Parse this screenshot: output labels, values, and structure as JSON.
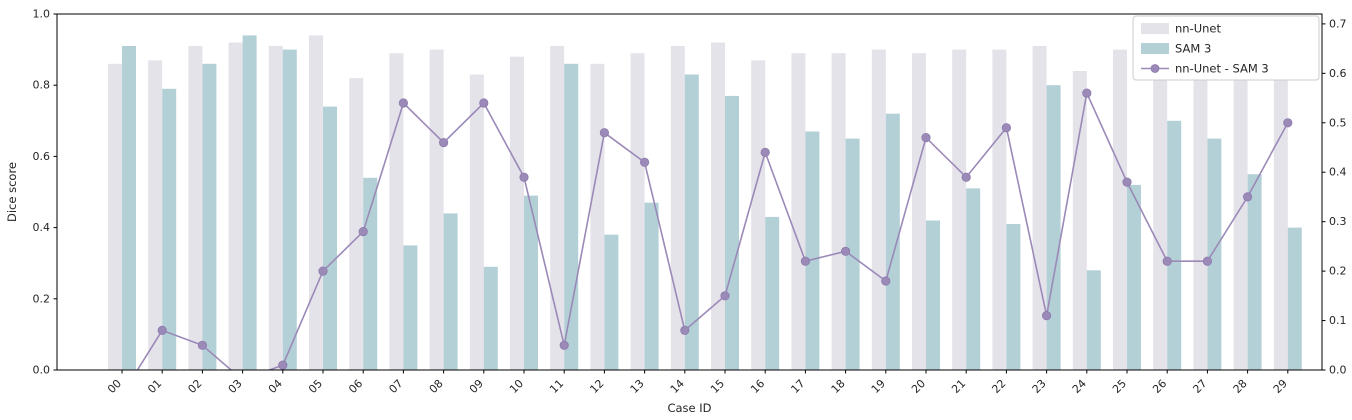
{
  "chart_data": {
    "type": "bar",
    "title": "",
    "xlabel": "Case ID",
    "ylabel_left": "Dice score",
    "ylim_left": [
      0.0,
      1.0
    ],
    "yticks_left": [
      "0.0",
      "0.2",
      "0.4",
      "0.6",
      "0.8",
      "1.0"
    ],
    "ylim_right": [
      0.0,
      0.72
    ],
    "yticks_right": [
      "0.0",
      "0.1",
      "0.2",
      "0.3",
      "0.4",
      "0.5",
      "0.6",
      "0.7"
    ],
    "legend_position": "upper right",
    "grid": false,
    "categories": [
      "00",
      "01",
      "02",
      "03",
      "04",
      "05",
      "06",
      "07",
      "08",
      "09",
      "10",
      "11",
      "12",
      "13",
      "14",
      "15",
      "16",
      "17",
      "18",
      "19",
      "20",
      "21",
      "22",
      "23",
      "24",
      "25",
      "26",
      "27",
      "28",
      "29"
    ],
    "series": [
      {
        "name": "nn-Unet",
        "kind": "bar",
        "axis": "left",
        "color": "#e5e3ea",
        "values": [
          0.86,
          0.87,
          0.91,
          0.92,
          0.91,
          0.94,
          0.82,
          0.89,
          0.9,
          0.83,
          0.88,
          0.91,
          0.86,
          0.89,
          0.91,
          0.92,
          0.87,
          0.89,
          0.89,
          0.9,
          0.89,
          0.9,
          0.9,
          0.91,
          0.84,
          0.9,
          0.92,
          0.87,
          0.9,
          0.9
        ]
      },
      {
        "name": "SAM 3",
        "kind": "bar",
        "axis": "left",
        "color": "#b3d0d7",
        "values": [
          0.91,
          0.79,
          0.86,
          0.94,
          0.9,
          0.74,
          0.54,
          0.35,
          0.44,
          0.29,
          0.49,
          0.86,
          0.38,
          0.47,
          0.83,
          0.77,
          0.43,
          0.67,
          0.65,
          0.72,
          0.42,
          0.51,
          0.41,
          0.8,
          0.28,
          0.52,
          0.7,
          0.65,
          0.55,
          0.4
        ]
      },
      {
        "name": "nn-Unet - SAM 3",
        "kind": "line",
        "axis": "right",
        "color": "#9b89b8",
        "values": [
          -0.05,
          0.08,
          0.05,
          -0.02,
          0.01,
          0.2,
          0.28,
          0.54,
          0.46,
          0.54,
          0.39,
          0.05,
          0.48,
          0.42,
          0.08,
          0.15,
          0.44,
          0.22,
          0.24,
          0.18,
          0.47,
          0.39,
          0.49,
          0.11,
          0.56,
          0.38,
          0.22,
          0.22,
          0.35,
          0.5
        ]
      }
    ]
  }
}
